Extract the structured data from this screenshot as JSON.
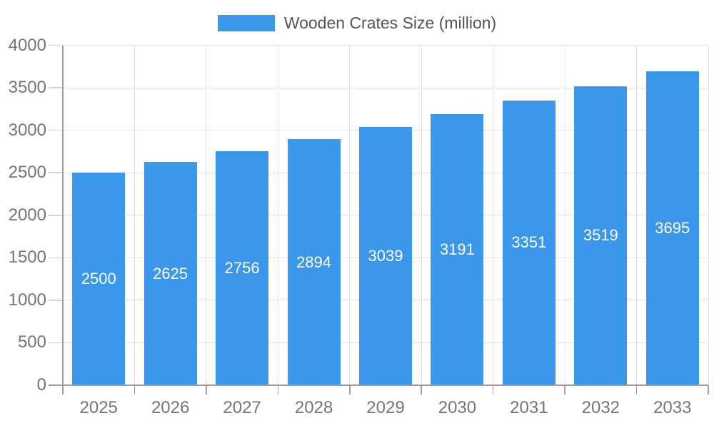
{
  "legend": {
    "items": [
      {
        "label": "Wooden Crates Size (million)",
        "color": "#3b97ec"
      }
    ]
  },
  "chart_data": {
    "type": "bar",
    "title": "Wooden Crates Size (million)",
    "categories": [
      "2025",
      "2026",
      "2027",
      "2028",
      "2029",
      "2030",
      "2031",
      "2032",
      "2033"
    ],
    "series": [
      {
        "name": "Wooden Crates Size (million)",
        "color": "#3b97ec",
        "values": [
          2500,
          2625,
          2756,
          2894,
          3039,
          3191,
          3351,
          3519,
          3695
        ]
      }
    ],
    "bar_labels_shown": true,
    "bar_label_color": "#ffffff",
    "xlabel": "",
    "ylabel": "",
    "ylim": [
      0,
      4000
    ],
    "yticks": [
      0,
      500,
      1000,
      1500,
      2000,
      2500,
      3000,
      3500,
      4000
    ],
    "grid": true,
    "legend_position": "top-center",
    "colors": {
      "background": "#ffffff",
      "axis_text": "#757575",
      "legend_text": "#555555",
      "grid_line": "#e2e2e2",
      "axis_line": "#9e9e9e",
      "y_tick_line": "#d4d4d4"
    }
  }
}
